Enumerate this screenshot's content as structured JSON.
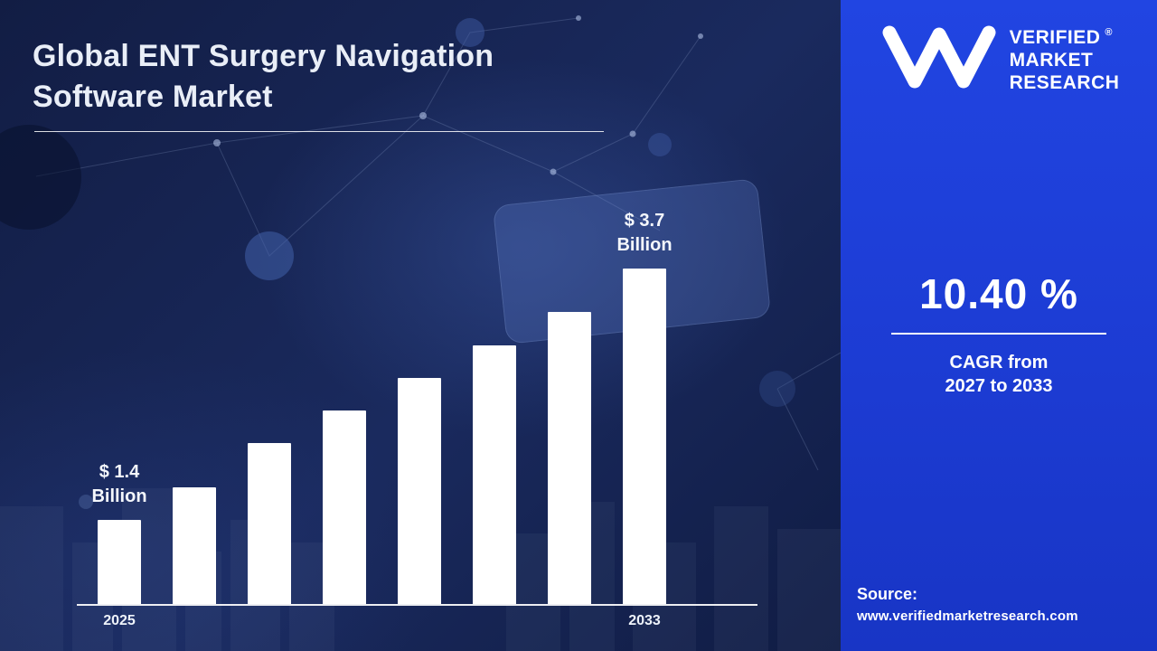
{
  "title": "Global ENT Surgery Navigation Software Market",
  "brand": {
    "name_lines": [
      "VERIFIED",
      "MARKET",
      "RESEARCH"
    ],
    "registered_mark": "®"
  },
  "stats": {
    "cagr_value": "10.40 %",
    "cagr_caption_line1": "CAGR from",
    "cagr_caption_line2": "2027 to 2033"
  },
  "source": {
    "label": "Source:",
    "website": "www.verifiedmarketresearch.com"
  },
  "colors": {
    "left_background": "#16224d",
    "right_panel_blue": "#1d3fd8",
    "bar_fill": "#ffffff",
    "text_light": "#eef3fa"
  },
  "chart_data": {
    "type": "bar",
    "title": "Global ENT Surgery Navigation Software Market",
    "categories": [
      "2025",
      "",
      "",
      "",
      "",
      "",
      "",
      "2033"
    ],
    "values": [
      1.4,
      1.7,
      2.1,
      2.4,
      2.7,
      3.0,
      3.3,
      3.7
    ],
    "value_unit": "USD Billion",
    "annotations": [
      {
        "bar_index": 0,
        "text": "$ 1.4 Billion"
      },
      {
        "bar_index": 7,
        "text": "$ 3.7 Billion"
      }
    ],
    "xlabel": "",
    "ylabel": "",
    "ylim": [
      0,
      4
    ],
    "grid": false,
    "legend": false
  }
}
